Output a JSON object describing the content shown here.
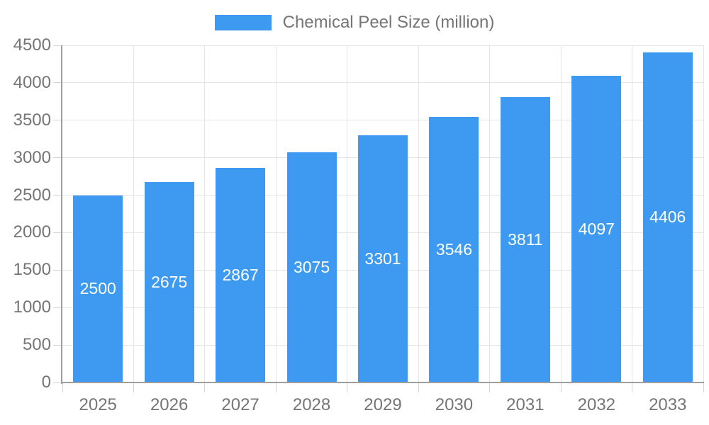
{
  "legend": {
    "label": "Chemical Peel Size (million)"
  },
  "chart_data": {
    "type": "bar",
    "title": "Chemical Peel Size (million)",
    "categories": [
      "2025",
      "2026",
      "2027",
      "2028",
      "2029",
      "2030",
      "2031",
      "2032",
      "2033"
    ],
    "series": [
      {
        "name": "Chemical Peel Size (million)",
        "values": [
          2500,
          2675,
          2867,
          3075,
          3301,
          3546,
          3811,
          4097,
          4406
        ]
      }
    ],
    "values": [
      2500,
      2675,
      2867,
      3075,
      3301,
      3546,
      3811,
      4097,
      4406
    ],
    "value_labels_inside_bars": true,
    "xlabel": "",
    "ylabel": "",
    "ylim": [
      0,
      4500
    ],
    "yticks": [
      0,
      500,
      1000,
      1500,
      2000,
      2500,
      3000,
      3500,
      4000,
      4500
    ],
    "grid": true,
    "legend_position": "top",
    "colors": {
      "bar": "#3d9af0",
      "bar_value_text": "#ffffff",
      "grid": "#e5e5e5",
      "tick": "#d4d4d4",
      "axis": "#9e9e9e",
      "text": "#757575",
      "background": "#ffffff"
    }
  }
}
